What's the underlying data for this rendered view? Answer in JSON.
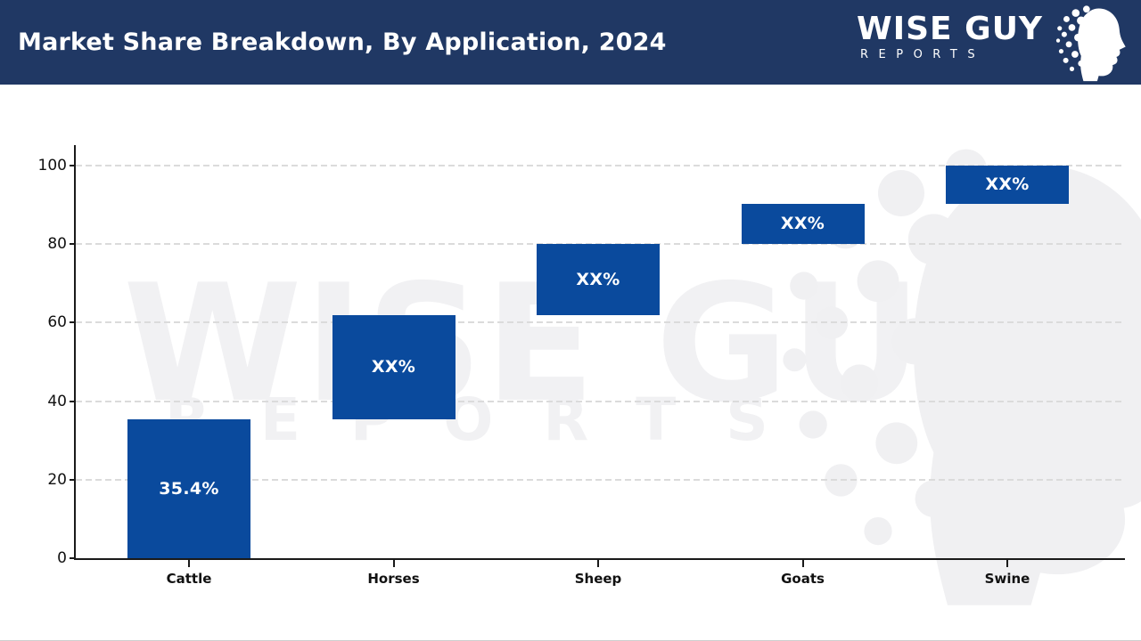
{
  "header": {
    "title": "Market Share Breakdown, By Application, 2024",
    "logo": {
      "line1": "WISE GUY",
      "line2": "REPORTS",
      "icon": "dotted-head-profile"
    }
  },
  "watermark": {
    "line1": "WISE GUY",
    "line2": "REPORTS"
  },
  "colors": {
    "header_bg": "#203864",
    "bar_fill": "#0a4a9d",
    "bar_label": "#ffffff",
    "gridline": "#dbdbdb",
    "axis": "#1a1a1a",
    "watermark": "#f1f1f3"
  },
  "chart_data": {
    "type": "bar",
    "subtype": "waterfall",
    "title": "Market Share Breakdown, By Application, 2024",
    "xlabel": "",
    "ylabel": "",
    "categories": [
      "Cattle",
      "Horses",
      "Sheep",
      "Goats",
      "Swine"
    ],
    "segments": [
      {
        "category": "Cattle",
        "start": 0,
        "end": 35.4,
        "label": "35.4%"
      },
      {
        "category": "Horses",
        "start": 35.4,
        "end": 62,
        "label": "XX%"
      },
      {
        "category": "Sheep",
        "start": 62,
        "end": 80,
        "label": "XX%"
      },
      {
        "category": "Goats",
        "start": 80,
        "end": 90.3,
        "label": "XX%"
      },
      {
        "category": "Swine",
        "start": 90.3,
        "end": 100,
        "label": "XX%"
      }
    ],
    "yticks": [
      0,
      20,
      40,
      60,
      80,
      100
    ],
    "ylim": [
      0,
      105
    ],
    "grid": "dashed-horizontal",
    "legend": "none"
  }
}
